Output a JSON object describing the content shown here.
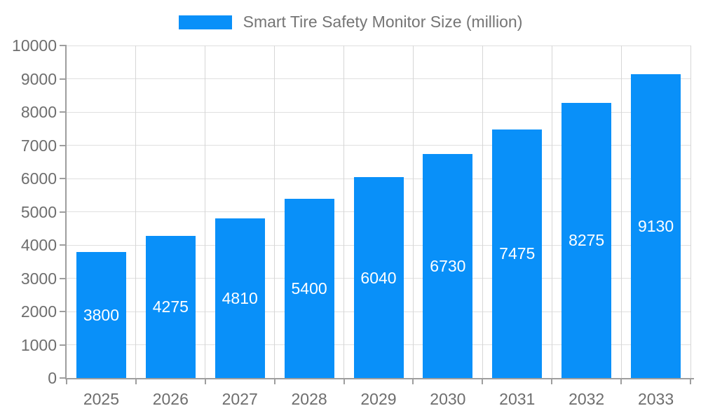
{
  "legend": {
    "label": "Smart Tire Safety Monitor Size (million)"
  },
  "chart_data": {
    "type": "bar",
    "title": "Smart Tire Safety Monitor Size (million)",
    "categories": [
      "2025",
      "2026",
      "2027",
      "2028",
      "2029",
      "2030",
      "2031",
      "2032",
      "2033"
    ],
    "values": [
      3800,
      4275,
      4810,
      5400,
      6040,
      6730,
      7475,
      8275,
      9130
    ],
    "xlabel": "",
    "ylabel": "",
    "ylim": [
      0,
      10000
    ],
    "ytick_step": 1000,
    "ytick_labels": [
      "0",
      "1000",
      "2000",
      "3000",
      "4000",
      "5000",
      "6000",
      "7000",
      "8000",
      "9000",
      "10000"
    ],
    "grid": true,
    "legend_position": "top",
    "bar_labels_visible": true,
    "colors": {
      "bar": "#0990f9",
      "grid_h": "#e0e0e0",
      "grid_v": "#d6d6d6",
      "axis": "#9e9e9e",
      "tick_text": "#6e6e6e",
      "title_text": "#757575",
      "bar_label_text": "#ffffff",
      "background": "#ffffff"
    }
  }
}
